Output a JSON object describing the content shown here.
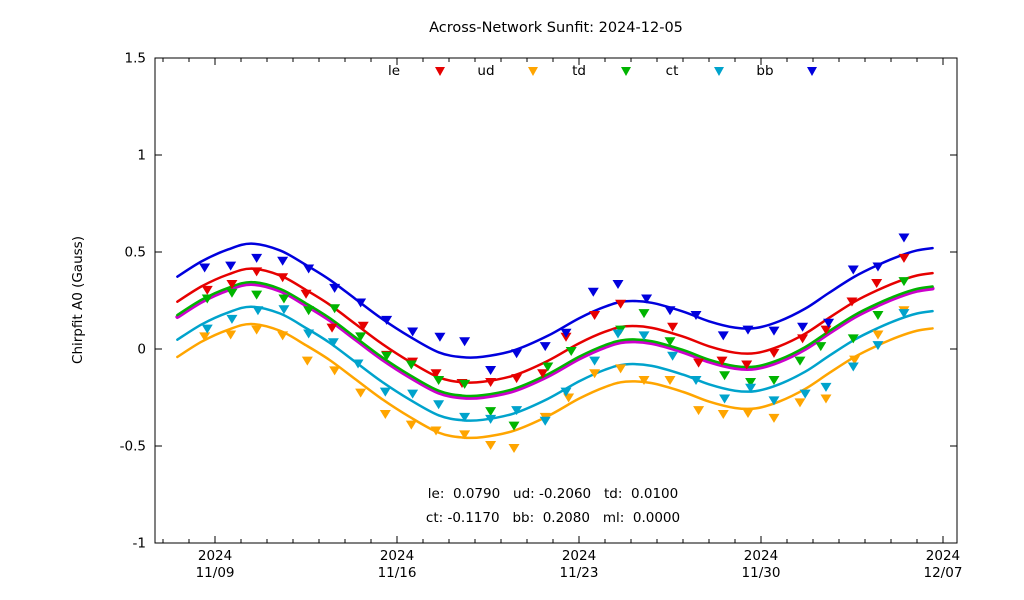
{
  "chart_data": {
    "type": "line",
    "title": "Across-Network Sunfit: 2024-12-05",
    "xlabel": "",
    "ylabel": "Chirpfit A0 (Gauss)",
    "ylim": [
      -1,
      1.5
    ],
    "xlim_days": [
      -2.31,
      28.54
    ],
    "grid": false,
    "marker": "triangle-down",
    "legend_position": "top-center-horizontal",
    "y_ticks": [
      {
        "v": 1.5,
        "label": "1.5"
      },
      {
        "v": 1.0,
        "label": "1"
      },
      {
        "v": 0.5,
        "label": "0.5"
      },
      {
        "v": 0.0,
        "label": "0"
      },
      {
        "v": -0.5,
        "label": "-0.5"
      },
      {
        "v": -1.0,
        "label": "-1"
      }
    ],
    "x_major_ticks": [
      {
        "day": 0,
        "year": "2024",
        "date": "11/09"
      },
      {
        "day": 7,
        "year": "2024",
        "date": "11/16"
      },
      {
        "day": 14,
        "year": "2024",
        "date": "11/23"
      },
      {
        "day": 21,
        "year": "2024",
        "date": "11/30"
      },
      {
        "day": 28,
        "year": "2024",
        "date": "12/07"
      }
    ],
    "x_minor_tick_every_days": 1,
    "fit_note": "each colored fit curve equals ml_fit_curve plus the series offset",
    "ml_fit_curve": [
      [
        -1.45,
        0.165
      ],
      [
        -0.5,
        0.245
      ],
      [
        0.5,
        0.305
      ],
      [
        1.4,
        0.335
      ],
      [
        2.5,
        0.3
      ],
      [
        3.5,
        0.225
      ],
      [
        4.4,
        0.15
      ],
      [
        5.4,
        0.05
      ],
      [
        6.4,
        -0.05
      ],
      [
        7.5,
        -0.145
      ],
      [
        8.6,
        -0.225
      ],
      [
        9.5,
        -0.25
      ],
      [
        10.3,
        -0.248
      ],
      [
        11.5,
        -0.215
      ],
      [
        12.8,
        -0.14
      ],
      [
        14.0,
        -0.05
      ],
      [
        15.0,
        0.01
      ],
      [
        15.8,
        0.038
      ],
      [
        16.8,
        0.03
      ],
      [
        18.0,
        -0.015
      ],
      [
        19.0,
        -0.065
      ],
      [
        20.0,
        -0.098
      ],
      [
        20.8,
        -0.1
      ],
      [
        21.7,
        -0.065
      ],
      [
        22.7,
        0.0
      ],
      [
        23.6,
        0.08
      ],
      [
        24.6,
        0.165
      ],
      [
        25.5,
        0.225
      ],
      [
        26.3,
        0.27
      ],
      [
        27.0,
        0.3
      ],
      [
        27.6,
        0.312
      ]
    ],
    "series": [
      {
        "name": "le",
        "color": "#e60000",
        "offset": 0.079,
        "points": [
          [
            -0.3,
            0.305
          ],
          [
            0.65,
            0.335
          ],
          [
            1.6,
            0.4
          ],
          [
            2.6,
            0.37
          ],
          [
            3.5,
            0.285
          ],
          [
            4.5,
            0.11
          ],
          [
            5.7,
            0.12
          ],
          [
            6.6,
            -0.03
          ],
          [
            7.6,
            -0.065
          ],
          [
            8.5,
            -0.125
          ],
          [
            9.5,
            -0.175
          ],
          [
            10.6,
            -0.17
          ],
          [
            11.6,
            -0.15
          ],
          [
            12.6,
            -0.125
          ],
          [
            13.5,
            0.063
          ],
          [
            14.6,
            0.175
          ],
          [
            15.6,
            0.233
          ],
          [
            17.6,
            0.115
          ],
          [
            18.6,
            -0.07
          ],
          [
            19.5,
            -0.06
          ],
          [
            20.45,
            -0.08
          ],
          [
            21.5,
            -0.02
          ],
          [
            22.6,
            0.055
          ],
          [
            23.5,
            0.1
          ],
          [
            24.5,
            0.245
          ],
          [
            25.45,
            0.34
          ],
          [
            26.5,
            0.47
          ]
        ]
      },
      {
        "name": "ud",
        "color": "#ffa500",
        "offset": -0.206,
        "points": [
          [
            -0.4,
            0.065
          ],
          [
            0.6,
            0.075
          ],
          [
            1.6,
            0.1
          ],
          [
            2.6,
            0.07
          ],
          [
            3.55,
            -0.06
          ],
          [
            4.6,
            -0.11
          ],
          [
            5.6,
            -0.225
          ],
          [
            6.55,
            -0.335
          ],
          [
            7.55,
            -0.39
          ],
          [
            8.5,
            -0.42
          ],
          [
            9.6,
            -0.44
          ],
          [
            10.6,
            -0.495
          ],
          [
            11.5,
            -0.51
          ],
          [
            12.7,
            -0.35
          ],
          [
            13.6,
            -0.25
          ],
          [
            14.6,
            -0.125
          ],
          [
            15.6,
            -0.1
          ],
          [
            16.5,
            -0.16
          ],
          [
            17.5,
            -0.16
          ],
          [
            18.6,
            -0.315
          ],
          [
            19.55,
            -0.335
          ],
          [
            20.5,
            -0.33
          ],
          [
            21.5,
            -0.355
          ],
          [
            22.5,
            -0.275
          ],
          [
            23.5,
            -0.255
          ],
          [
            24.6,
            -0.055
          ],
          [
            25.5,
            0.075
          ],
          [
            26.5,
            0.2
          ]
        ]
      },
      {
        "name": "td",
        "color": "#00b400",
        "offset": 0.01,
        "points": [
          [
            -0.3,
            0.26
          ],
          [
            0.65,
            0.29
          ],
          [
            1.6,
            0.28
          ],
          [
            2.65,
            0.26
          ],
          [
            3.6,
            0.2
          ],
          [
            4.6,
            0.21
          ],
          [
            5.6,
            0.065
          ],
          [
            6.6,
            -0.035
          ],
          [
            7.55,
            -0.08
          ],
          [
            8.6,
            -0.16
          ],
          [
            9.6,
            -0.18
          ],
          [
            10.6,
            -0.32
          ],
          [
            11.5,
            -0.395
          ],
          [
            12.8,
            -0.09
          ],
          [
            13.7,
            -0.01
          ],
          [
            15.6,
            0.1
          ],
          [
            16.5,
            0.185
          ],
          [
            17.5,
            0.04
          ],
          [
            19.6,
            -0.135
          ],
          [
            20.6,
            -0.17
          ],
          [
            21.5,
            -0.16
          ],
          [
            22.5,
            -0.06
          ],
          [
            23.3,
            0.015
          ],
          [
            24.55,
            0.055
          ],
          [
            25.5,
            0.175
          ],
          [
            26.5,
            0.35
          ]
        ]
      },
      {
        "name": "ct",
        "color": "#00a3cc",
        "offset": -0.117,
        "points": [
          [
            -0.3,
            0.105
          ],
          [
            0.65,
            0.155
          ],
          [
            1.65,
            0.2
          ],
          [
            2.65,
            0.205
          ],
          [
            3.6,
            0.08
          ],
          [
            4.55,
            0.035
          ],
          [
            5.5,
            -0.075
          ],
          [
            6.55,
            -0.22
          ],
          [
            7.6,
            -0.23
          ],
          [
            8.6,
            -0.285
          ],
          [
            9.6,
            -0.35
          ],
          [
            10.6,
            -0.36
          ],
          [
            11.6,
            -0.315
          ],
          [
            12.7,
            -0.37
          ],
          [
            13.5,
            -0.22
          ],
          [
            14.6,
            -0.06
          ],
          [
            15.5,
            0.08
          ],
          [
            16.5,
            0.07
          ],
          [
            17.6,
            -0.035
          ],
          [
            18.5,
            -0.16
          ],
          [
            19.6,
            -0.255
          ],
          [
            20.6,
            -0.2
          ],
          [
            21.5,
            -0.265
          ],
          [
            22.7,
            -0.23
          ],
          [
            23.5,
            -0.195
          ],
          [
            24.55,
            -0.09
          ],
          [
            25.5,
            0.02
          ],
          [
            26.5,
            0.185
          ]
        ]
      },
      {
        "name": "bb",
        "color": "#0000dd",
        "offset": 0.208,
        "points": [
          [
            -0.4,
            0.42
          ],
          [
            0.6,
            0.43
          ],
          [
            1.6,
            0.47
          ],
          [
            2.6,
            0.455
          ],
          [
            3.6,
            0.415
          ],
          [
            4.6,
            0.315
          ],
          [
            5.6,
            0.24
          ],
          [
            6.6,
            0.15
          ],
          [
            7.6,
            0.09
          ],
          [
            8.65,
            0.063
          ],
          [
            9.6,
            0.04
          ],
          [
            10.6,
            -0.108
          ],
          [
            11.6,
            -0.022
          ],
          [
            12.7,
            0.015
          ],
          [
            13.5,
            0.084
          ],
          [
            14.55,
            0.295
          ],
          [
            15.5,
            0.335
          ],
          [
            16.6,
            0.26
          ],
          [
            17.5,
            0.2
          ],
          [
            18.5,
            0.175
          ],
          [
            19.55,
            0.07
          ],
          [
            20.5,
            0.1
          ],
          [
            21.5,
            0.095
          ],
          [
            22.6,
            0.115
          ],
          [
            23.6,
            0.135
          ],
          [
            24.55,
            0.41
          ],
          [
            25.5,
            0.425
          ],
          [
            26.5,
            0.575
          ]
        ]
      },
      {
        "name": "ml",
        "color": "#cc00cc",
        "offset": 0.0,
        "line_width": 4,
        "points": []
      }
    ],
    "legend": {
      "items": [
        {
          "label": "le",
          "color": "#e60000"
        },
        {
          "label": "ud",
          "color": "#ffa500"
        },
        {
          "label": "td",
          "color": "#00b400"
        },
        {
          "label": "ct",
          "color": "#00a3cc"
        },
        {
          "label": "bb",
          "color": "#0000dd"
        }
      ]
    },
    "annotations": {
      "line1": "le:  0.0790   ud: -0.2060   td:  0.0100",
      "line2": "ct: -0.1170   bb:  0.2080   ml:  0.0000"
    },
    "fit_coefficients": {
      "le": 0.079,
      "ud": -0.206,
      "td": 0.01,
      "ct": -0.117,
      "bb": 0.208,
      "ml": 0.0
    }
  }
}
